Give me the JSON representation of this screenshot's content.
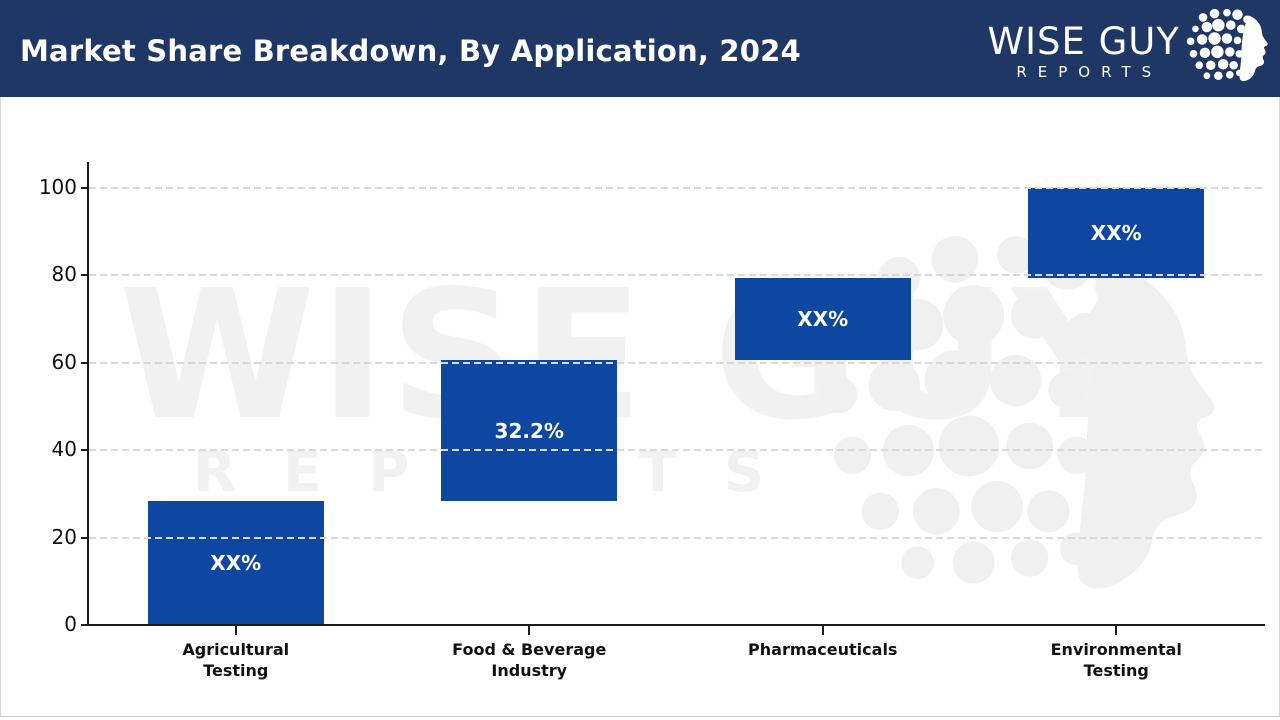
{
  "header": {
    "title": "Market Share Breakdown, By Application, 2024",
    "logo": {
      "brand": "Wise Guy Reports",
      "line1": "WISE GUY",
      "line2": "REPORTS"
    }
  },
  "watermark": {
    "line1": "WISE GUY",
    "line2": "REPORTS"
  },
  "colors": {
    "header_bg": "#1e3765",
    "bar_blue": "#0d47a1",
    "gridline": "#d9d9d9",
    "axis": "#1a1a1a",
    "watermark": "#f1f1f1",
    "bar_label_text": "#ffffff",
    "title_text": "#ffffff"
  },
  "chart_data": {
    "type": "bar",
    "subtype": "waterfall",
    "title": "Market Share Breakdown, By Application, 2024",
    "xlabel": "",
    "ylabel": "",
    "ylim": [
      0,
      100
    ],
    "y_ticks": [
      0,
      20,
      40,
      60,
      80,
      100
    ],
    "grid": "horizontal-dashed-over-bars",
    "legend": "none",
    "bar_color": "#0d47a1",
    "categories": [
      "Agricultural Testing",
      "Food & Beverage Industry",
      "Pharmaceuticals",
      "Environmental Testing"
    ],
    "segments": [
      {
        "category": "Agricultural Testing",
        "category_lines": [
          "Agricultural",
          "Testing"
        ],
        "start": 0,
        "end": 28.3,
        "value": 28.3,
        "label": "XX%"
      },
      {
        "category": "Food & Beverage Industry",
        "category_lines": [
          "Food & Beverage",
          "Industry"
        ],
        "start": 28.3,
        "end": 60.5,
        "value": 32.2,
        "label": "32.2%"
      },
      {
        "category": "Pharmaceuticals",
        "category_lines": [
          "Pharmaceuticals"
        ],
        "start": 60.5,
        "end": 79.3,
        "value": 18.8,
        "label": "XX%"
      },
      {
        "category": "Environmental Testing",
        "category_lines": [
          "Environmental",
          "Testing"
        ],
        "start": 79.3,
        "end": 100,
        "value": 20.7,
        "label": "XX%"
      }
    ]
  }
}
